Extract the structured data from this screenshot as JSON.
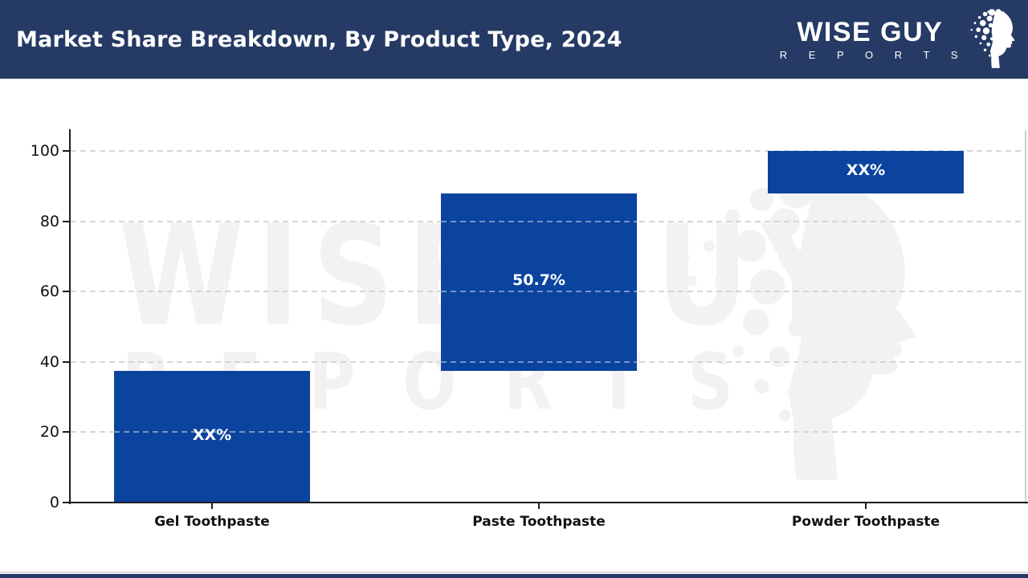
{
  "header": {
    "title": "Market Share Breakdown, By Product Type, 2024",
    "logo": {
      "line1": "WISE GUY",
      "line2": "R E P O R T S"
    }
  },
  "watermark": {
    "line1": "WISE GUY",
    "line2": "REPORTS"
  },
  "chart_data": {
    "type": "bar",
    "variant": "stacked-waterfall",
    "title": "Market Share Breakdown, By Product Type, 2024",
    "categories": [
      "Gel Toothpaste",
      "Paste Toothpaste",
      "Powder Toothpaste"
    ],
    "values": [
      37.3,
      50.7,
      12.0
    ],
    "cumulative_start": [
      0,
      37.3,
      88.0
    ],
    "bar_labels": [
      "XX%",
      "50.7%",
      "XX%"
    ],
    "yticks": [
      0,
      20,
      40,
      60,
      80,
      100
    ],
    "ylim": [
      0,
      106
    ],
    "grid": "dashed-horizontal",
    "legend": "none",
    "colors": {
      "bar": "#0b449f",
      "header": "#253a64",
      "axis": "#1c1c1c",
      "grid": "#d6d6d6",
      "watermark": "#f2f2f4",
      "bar_label": "#ffffff",
      "tick_text": "#111111"
    }
  }
}
